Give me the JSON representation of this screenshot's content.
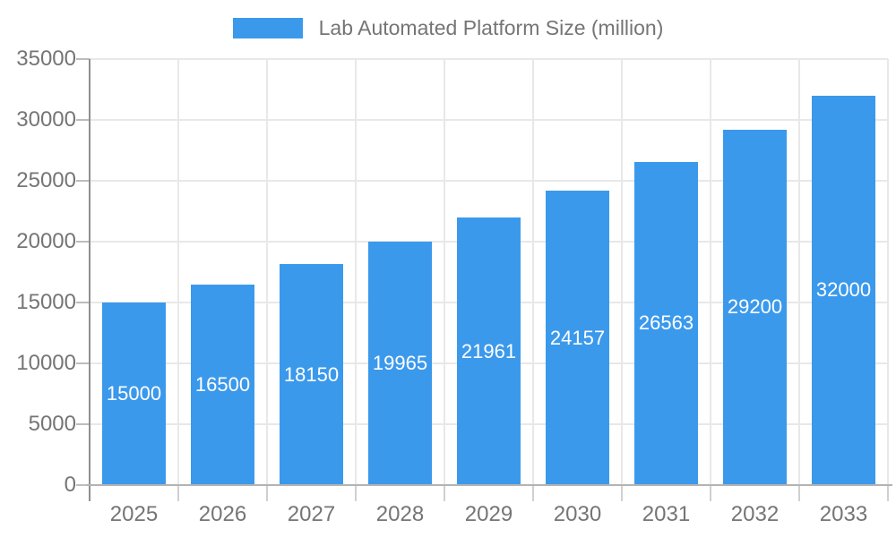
{
  "legend": {
    "label": "Lab Automated Platform Size (million)"
  },
  "chart_data": {
    "type": "bar",
    "title": "Lab Automated Platform Size (million)",
    "categories": [
      "2025",
      "2026",
      "2027",
      "2028",
      "2029",
      "2030",
      "2031",
      "2032",
      "2033"
    ],
    "series": [
      {
        "name": "Lab Automated Platform Size (million)",
        "values": [
          15000,
          16500,
          18150,
          19965,
          21961,
          24157,
          26563,
          29200,
          32000
        ]
      }
    ],
    "bar_value_labels": [
      "15000",
      "16500",
      "18150",
      "19965",
      "21961",
      "24157",
      "26563",
      "29200",
      "32000"
    ],
    "xlabel": "",
    "ylabel": "",
    "ylim": [
      0,
      35000
    ],
    "y_tick_step": 5000,
    "y_tick_labels": [
      "0",
      "5000",
      "10000",
      "15000",
      "20000",
      "25000",
      "30000",
      "35000"
    ],
    "grid": true,
    "legend_position": "top-center",
    "value_label_position": "inside-center"
  },
  "colors": {
    "bar": "#3b99ec",
    "bar_label": "#ffffff",
    "axis_text": "#757575",
    "grid_line": "#e8e8e8",
    "x_axis_line": "#b3b3b3",
    "y_axis_line": "#8f8f8f",
    "y_tick": "#bdbdbd",
    "x_tick": "#d0d0d0",
    "background": "#ffffff"
  }
}
